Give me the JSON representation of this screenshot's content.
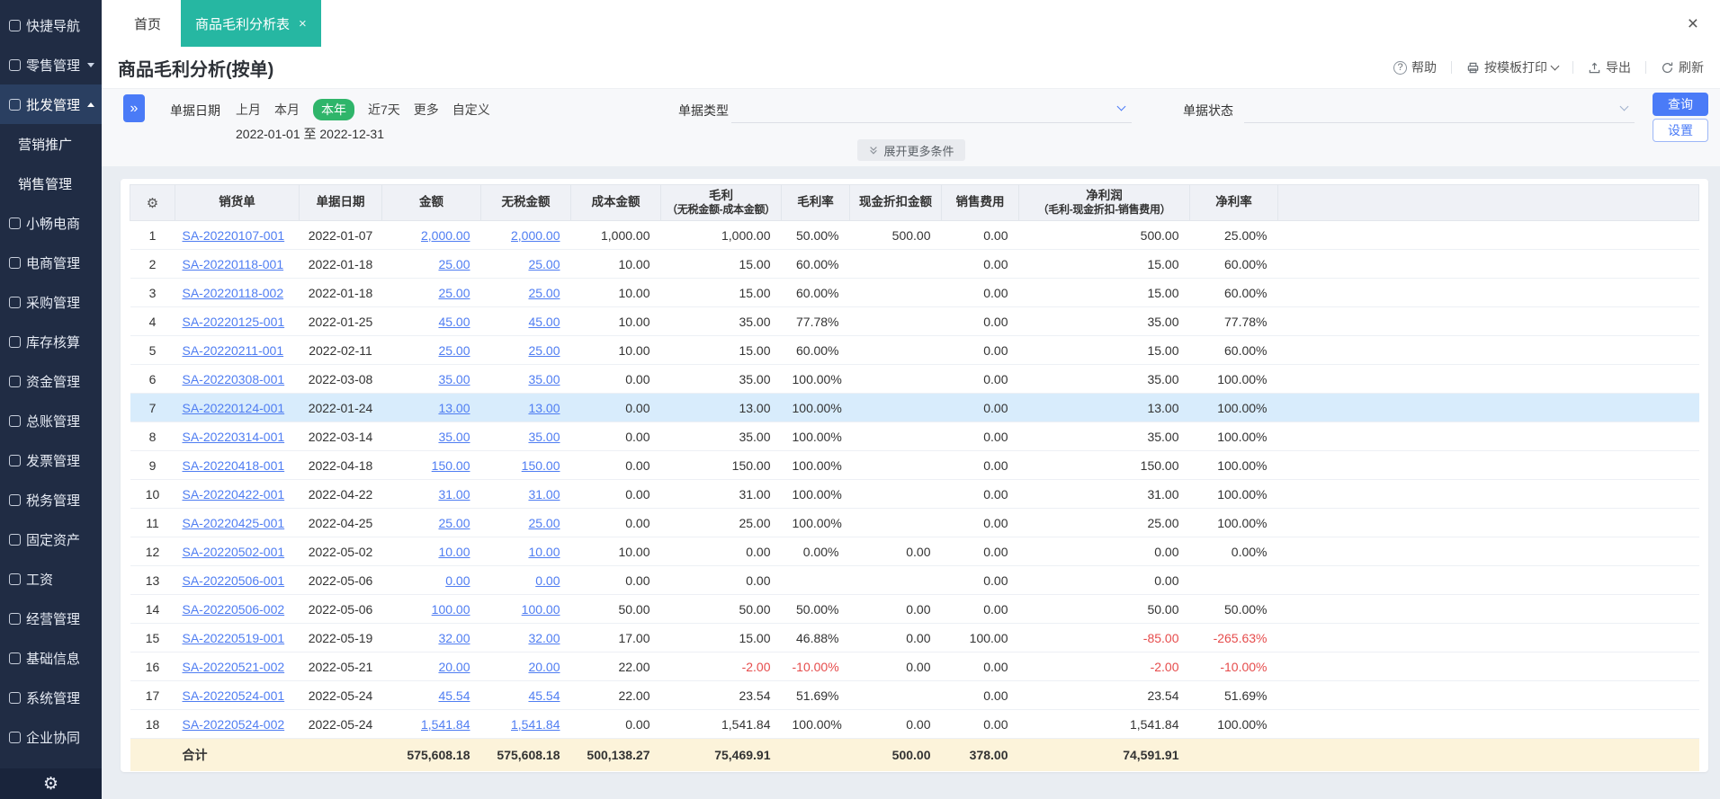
{
  "theme": {
    "accent_blue": "#4a7bf7",
    "tab_teal": "#26b7a2",
    "pill_green": "#2fb56a",
    "link_blue": "#4f7df2",
    "negative_red": "#e64c4c",
    "total_row_bg": "#fcf3da",
    "selected_row_bg": "#d8ecfc",
    "sidebar_bg": "#202c44"
  },
  "sidebar": {
    "items": [
      {
        "label": "快捷导航",
        "type": "top"
      },
      {
        "label": "零售管理",
        "type": "top",
        "chevron": "down"
      },
      {
        "label": "批发管理",
        "type": "top",
        "chevron": "up",
        "active": true
      },
      {
        "label": "营销推广",
        "type": "sub"
      },
      {
        "label": "销售管理",
        "type": "sub"
      },
      {
        "label": "小畅电商",
        "type": "top"
      },
      {
        "label": "电商管理",
        "type": "top"
      },
      {
        "label": "采购管理",
        "type": "top"
      },
      {
        "label": "库存核算",
        "type": "top"
      },
      {
        "label": "资金管理",
        "type": "top"
      },
      {
        "label": "总账管理",
        "type": "top"
      },
      {
        "label": "发票管理",
        "type": "top"
      },
      {
        "label": "税务管理",
        "type": "top"
      },
      {
        "label": "固定资产",
        "type": "top"
      },
      {
        "label": "工资",
        "type": "top"
      },
      {
        "label": "经营管理",
        "type": "top"
      },
      {
        "label": "基础信息",
        "type": "top"
      },
      {
        "label": "系统管理",
        "type": "top"
      },
      {
        "label": "企业协同",
        "type": "top"
      }
    ]
  },
  "tabs": {
    "home": "首页",
    "active": "商品毛利分析表"
  },
  "header": {
    "title": "商品毛利分析(按单)",
    "actions": [
      {
        "label": "帮助",
        "icon": "help-icon"
      },
      {
        "label": "按模板打印",
        "icon": "printer-icon"
      },
      {
        "label": "导出",
        "icon": "export-icon"
      },
      {
        "label": "刷新",
        "icon": "refresh-icon"
      }
    ]
  },
  "filters": {
    "date_label": "单据日期",
    "date_options": [
      {
        "label": "上月"
      },
      {
        "label": "本月"
      },
      {
        "label": "本年",
        "active": true
      },
      {
        "label": "近7天"
      },
      {
        "label": "更多"
      },
      {
        "label": "自定义"
      }
    ],
    "date_range": "2022-01-01 至 2022-12-31",
    "type_label": "单据类型",
    "status_label": "单据状态",
    "query_button": "查询",
    "settings_button": "设置",
    "expand_more": "展开更多条件"
  },
  "table": {
    "columns": [
      {
        "key": "order",
        "label": "销货单"
      },
      {
        "key": "date",
        "label": "单据日期"
      },
      {
        "key": "amount",
        "label": "金额"
      },
      {
        "key": "tax_free",
        "label": "无税金额"
      },
      {
        "key": "cost",
        "label": "成本金额"
      },
      {
        "key": "gross",
        "label": "毛利",
        "sub": "（无税金额-成本金额）"
      },
      {
        "key": "gross_rate",
        "label": "毛利率"
      },
      {
        "key": "cash_discount",
        "label": "现金折扣金额"
      },
      {
        "key": "expense",
        "label": "销售费用"
      },
      {
        "key": "net",
        "label": "净利润",
        "sub": "（毛利-现金折扣-销售费用）"
      },
      {
        "key": "net_rate",
        "label": "净利率"
      }
    ],
    "rows": [
      {
        "cells": [
          "SA-20220107-001",
          "2022-01-07",
          "2,000.00",
          "2,000.00",
          "1,000.00",
          "1,000.00",
          "50.00%",
          "500.00",
          "0.00",
          "500.00",
          "25.00%"
        ]
      },
      {
        "cells": [
          "SA-20220118-001",
          "2022-01-18",
          "25.00",
          "25.00",
          "10.00",
          "15.00",
          "60.00%",
          "",
          "0.00",
          "15.00",
          "60.00%"
        ]
      },
      {
        "cells": [
          "SA-20220118-002",
          "2022-01-18",
          "25.00",
          "25.00",
          "10.00",
          "15.00",
          "60.00%",
          "",
          "0.00",
          "15.00",
          "60.00%"
        ]
      },
      {
        "cells": [
          "SA-20220125-001",
          "2022-01-25",
          "45.00",
          "45.00",
          "10.00",
          "35.00",
          "77.78%",
          "",
          "0.00",
          "35.00",
          "77.78%"
        ]
      },
      {
        "cells": [
          "SA-20220211-001",
          "2022-02-11",
          "25.00",
          "25.00",
          "10.00",
          "15.00",
          "60.00%",
          "",
          "0.00",
          "15.00",
          "60.00%"
        ]
      },
      {
        "cells": [
          "SA-20220308-001",
          "2022-03-08",
          "35.00",
          "35.00",
          "0.00",
          "35.00",
          "100.00%",
          "",
          "0.00",
          "35.00",
          "100.00%"
        ]
      },
      {
        "cells": [
          "SA-20220124-001",
          "2022-01-24",
          "13.00",
          "13.00",
          "0.00",
          "13.00",
          "100.00%",
          "",
          "0.00",
          "13.00",
          "100.00%"
        ],
        "selected": true
      },
      {
        "cells": [
          "SA-20220314-001",
          "2022-03-14",
          "35.00",
          "35.00",
          "0.00",
          "35.00",
          "100.00%",
          "",
          "0.00",
          "35.00",
          "100.00%"
        ]
      },
      {
        "cells": [
          "SA-20220418-001",
          "2022-04-18",
          "150.00",
          "150.00",
          "0.00",
          "150.00",
          "100.00%",
          "",
          "0.00",
          "150.00",
          "100.00%"
        ]
      },
      {
        "cells": [
          "SA-20220422-001",
          "2022-04-22",
          "31.00",
          "31.00",
          "0.00",
          "31.00",
          "100.00%",
          "",
          "0.00",
          "31.00",
          "100.00%"
        ]
      },
      {
        "cells": [
          "SA-20220425-001",
          "2022-04-25",
          "25.00",
          "25.00",
          "0.00",
          "25.00",
          "100.00%",
          "",
          "0.00",
          "25.00",
          "100.00%"
        ]
      },
      {
        "cells": [
          "SA-20220502-001",
          "2022-05-02",
          "10.00",
          "10.00",
          "10.00",
          "0.00",
          "0.00%",
          "0.00",
          "0.00",
          "0.00",
          "0.00%"
        ]
      },
      {
        "cells": [
          "SA-20220506-001",
          "2022-05-06",
          "0.00",
          "0.00",
          "0.00",
          "0.00",
          "",
          "",
          "0.00",
          "0.00",
          ""
        ]
      },
      {
        "cells": [
          "SA-20220506-002",
          "2022-05-06",
          "100.00",
          "100.00",
          "50.00",
          "50.00",
          "50.00%",
          "0.00",
          "0.00",
          "50.00",
          "50.00%"
        ]
      },
      {
        "cells": [
          "SA-20220519-001",
          "2022-05-19",
          "32.00",
          "32.00",
          "17.00",
          "15.00",
          "46.88%",
          "0.00",
          "100.00",
          "-85.00",
          "-265.63%"
        ]
      },
      {
        "cells": [
          "SA-20220521-002",
          "2022-05-21",
          "20.00",
          "20.00",
          "22.00",
          "-2.00",
          "-10.00%",
          "0.00",
          "0.00",
          "-2.00",
          "-10.00%"
        ]
      },
      {
        "cells": [
          "SA-20220524-001",
          "2022-05-24",
          "45.54",
          "45.54",
          "22.00",
          "23.54",
          "51.69%",
          "",
          "0.00",
          "23.54",
          "51.69%"
        ]
      },
      {
        "cells": [
          "SA-20220524-002",
          "2022-05-24",
          "1,541.84",
          "1,541.84",
          "0.00",
          "1,541.84",
          "100.00%",
          "0.00",
          "0.00",
          "1,541.84",
          "100.00%"
        ]
      }
    ],
    "total": {
      "label": "合计",
      "cells": [
        "575,608.18",
        "575,608.18",
        "500,138.27",
        "75,469.91",
        "",
        "500.00",
        "378.00",
        "74,591.91",
        ""
      ]
    }
  }
}
